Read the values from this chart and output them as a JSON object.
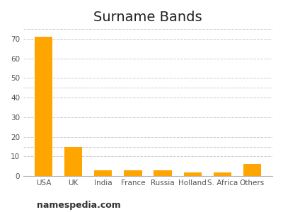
{
  "title": "Surname Bands",
  "categories": [
    "USA",
    "UK",
    "India",
    "France",
    "Russia",
    "Holland",
    "S. Africa",
    "Others"
  ],
  "values": [
    71,
    15,
    3,
    3,
    3,
    2,
    2,
    6
  ],
  "bar_color": "#FFA500",
  "ylim": [
    0,
    75
  ],
  "yticks": [
    0,
    10,
    20,
    30,
    40,
    50,
    60,
    70
  ],
  "extra_gridlines": [
    15,
    45,
    75
  ],
  "grid_color": "#cccccc",
  "background_color": "#ffffff",
  "title_fontsize": 14,
  "tick_fontsize": 7.5,
  "watermark": "namespedia.com",
  "watermark_fontsize": 9,
  "watermark_color": "#333333"
}
